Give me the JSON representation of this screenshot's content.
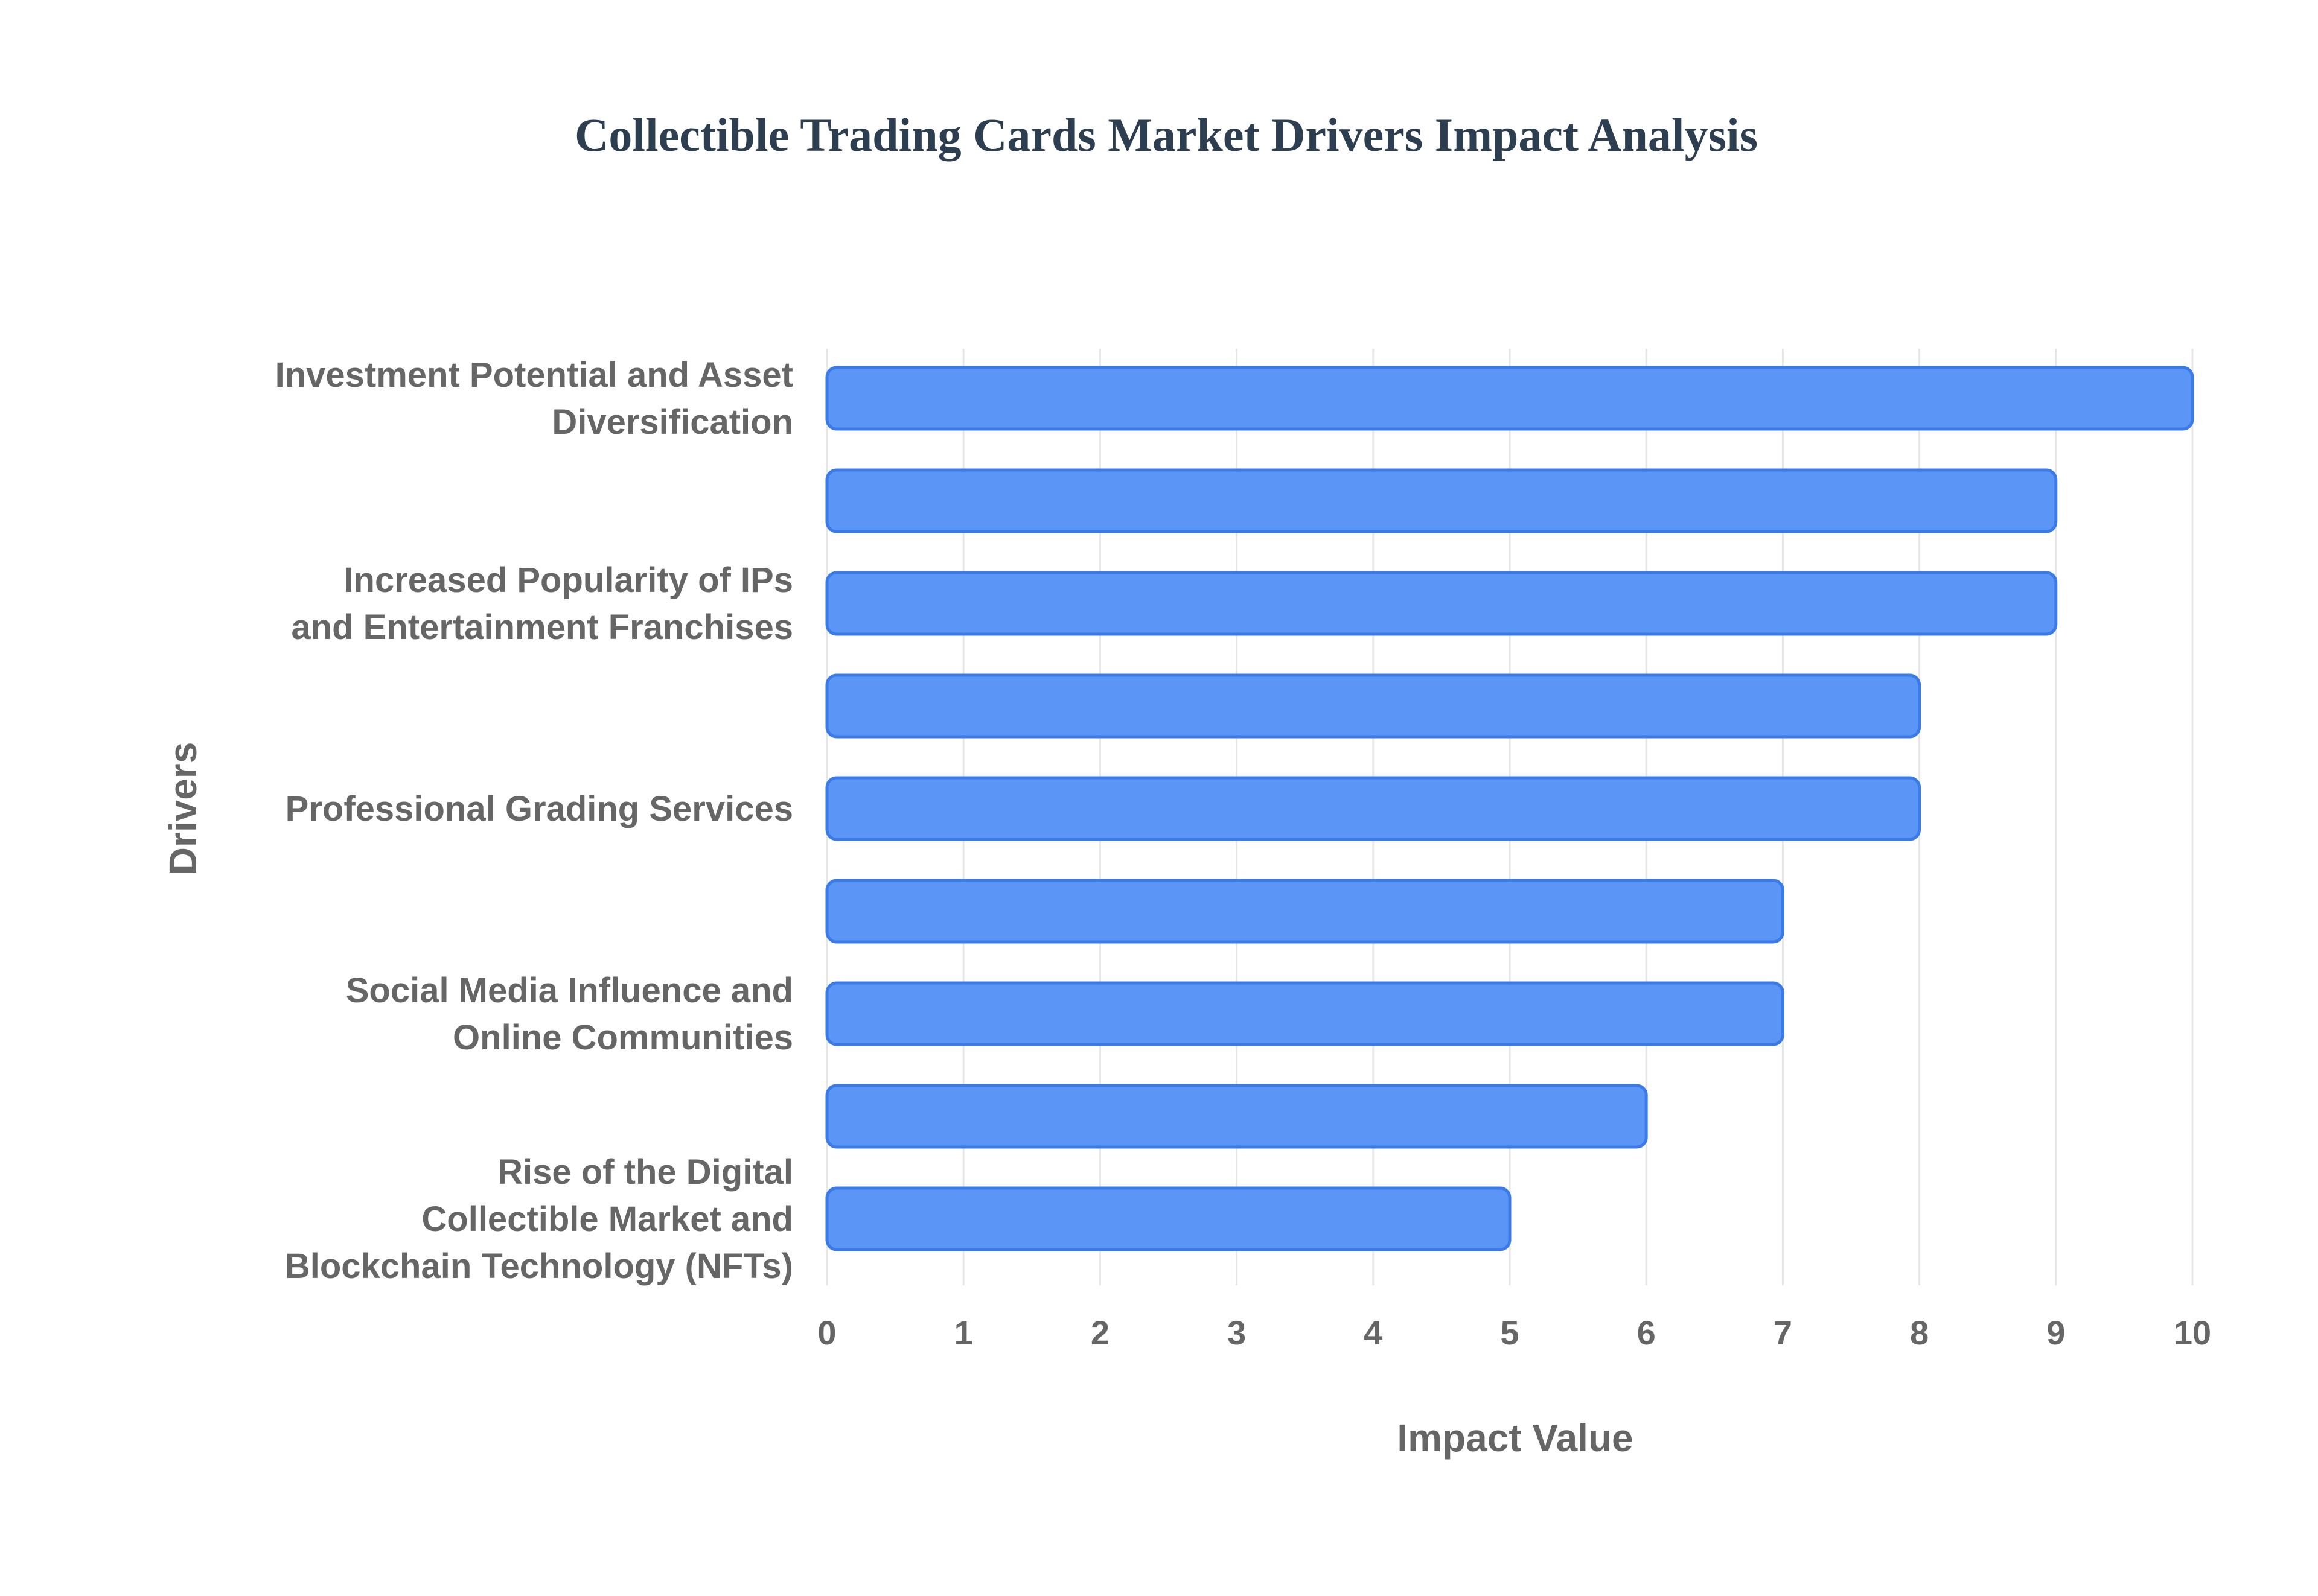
{
  "chart_data": {
    "type": "bar",
    "orientation": "horizontal",
    "title": "Collectible Trading Cards Market Drivers Impact Analysis",
    "xlabel": "Impact Value",
    "ylabel": "Drivers",
    "xlim": [
      0,
      10
    ],
    "x_ticks": [
      "0",
      "1",
      "2",
      "3",
      "4",
      "5",
      "6",
      "7",
      "8",
      "9",
      "10"
    ],
    "grid": true,
    "legend": "none",
    "bar_color": "#5b95f5",
    "bar_edge_color": "#3b7be8",
    "bars": [
      {
        "label": "Investment Potential and Asset Diversification",
        "label_lines": [
          "Investment Potential and Asset",
          "Diversification"
        ],
        "value": 10
      },
      {
        "label": "",
        "label_lines": [],
        "value": 9
      },
      {
        "label": "Increased Popularity of IPs and Entertainment Franchises",
        "label_lines": [
          "Increased Popularity of IPs",
          "and Entertainment Franchises"
        ],
        "value": 9
      },
      {
        "label": "",
        "label_lines": [],
        "value": 8
      },
      {
        "label": "Professional Grading Services",
        "label_lines": [
          "Professional Grading Services"
        ],
        "value": 8
      },
      {
        "label": "",
        "label_lines": [],
        "value": 7
      },
      {
        "label": "Social Media Influence and Online Communities",
        "label_lines": [
          "Social Media Influence and",
          "Online Communities"
        ],
        "value": 7
      },
      {
        "label": "",
        "label_lines": [],
        "value": 6
      },
      {
        "label": "Rise of the Digital Collectible Market and Blockchain Technology (NFTs)",
        "label_lines": [
          "Rise of the Digital",
          "Collectible Market and",
          "Blockchain Technology (NFTs)"
        ],
        "value": 5
      }
    ]
  }
}
